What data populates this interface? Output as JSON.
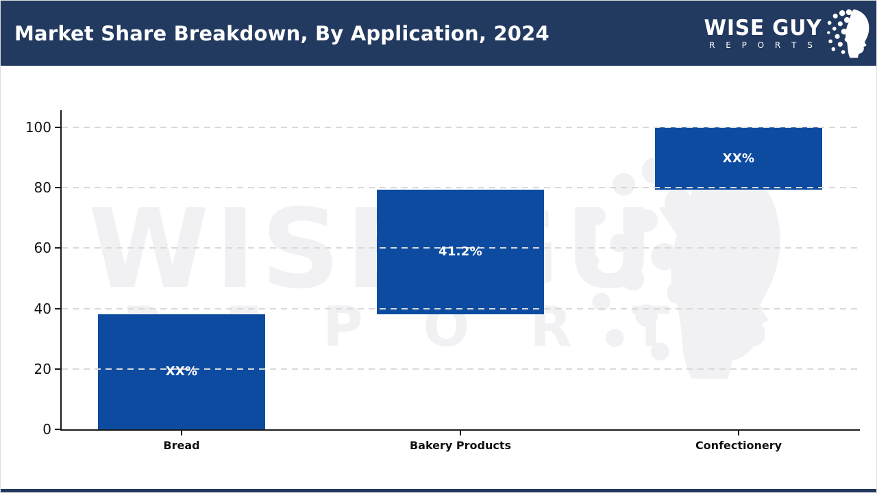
{
  "header": {
    "title": "Market Share Breakdown, By Application, 2024",
    "logo": {
      "name": "WISE GUY",
      "sub": "R E P O R T S"
    }
  },
  "watermark": {
    "word1": "WISE GUY",
    "word2": "R E P O R T S"
  },
  "colors": {
    "header_bg": "#233a60",
    "bar": "#0c4ba0",
    "grid": "#d9d9d9",
    "axis": "#1a1a1a",
    "bar_label": "#ffffff",
    "watermark": "#f1f1f4"
  },
  "chart_data": {
    "type": "bar",
    "subtype": "waterfall-stacked-breakdown",
    "title": "Market Share Breakdown, By Application, 2024",
    "categories": [
      "Bread",
      "Bakery Products",
      "Confectionery"
    ],
    "bars": [
      {
        "category": "Bread",
        "start": 0,
        "end": 38.1,
        "value": 38.1,
        "label": "XX%"
      },
      {
        "category": "Bakery Products",
        "start": 38.1,
        "end": 79.3,
        "value": 41.2,
        "label": "41.2%"
      },
      {
        "category": "Confectionery",
        "start": 79.3,
        "end": 100,
        "value": 20.7,
        "label": "XX%"
      }
    ],
    "yticks": [
      0,
      20,
      40,
      60,
      80,
      100
    ],
    "ylim": [
      0,
      100
    ],
    "xlabel": "",
    "ylabel": "",
    "grid": "dashed-horizontal",
    "legend": "none",
    "bar_color": "#0c4ba0"
  }
}
